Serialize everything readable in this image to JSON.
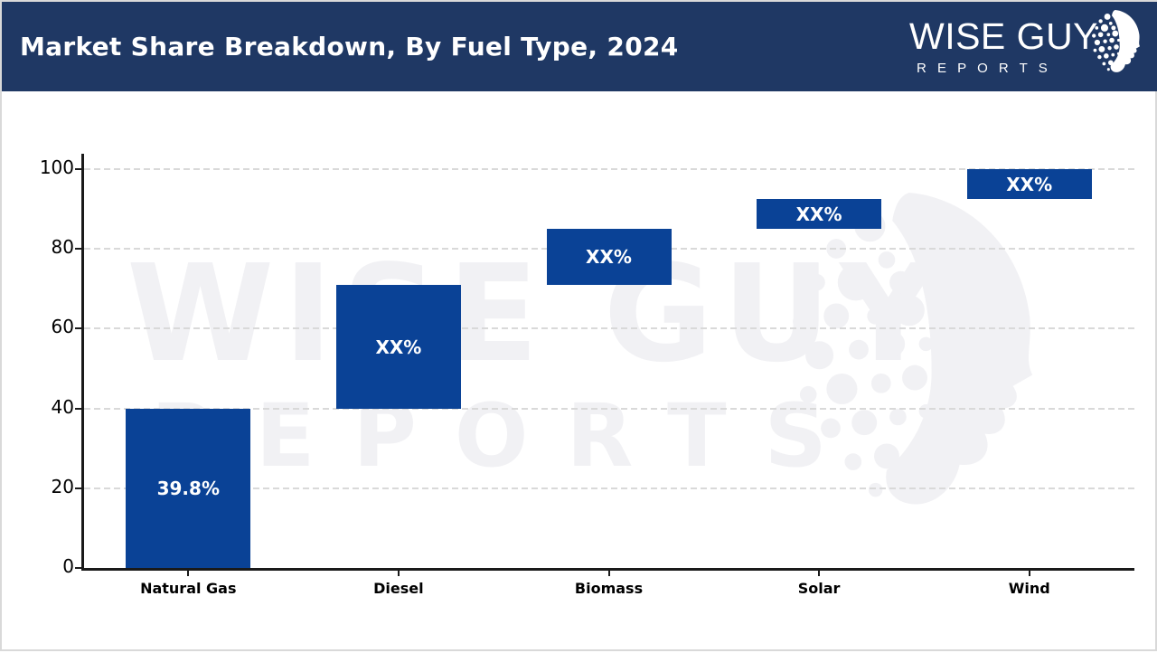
{
  "header": {
    "title": "Market Share Breakdown, By Fuel Type, 2024",
    "bg_color": "#1f3864",
    "logo": {
      "line1": "WISE GUY",
      "line2": "R E P O R T S",
      "color": "#ffffff"
    }
  },
  "watermark": {
    "line1": "WISE GUY",
    "line2": "REPORTS",
    "color": "#f1f1f4"
  },
  "chart_data": {
    "type": "bar",
    "subtype": "stacked-waterfall",
    "title": "Market Share Breakdown, By Fuel Type, 2024",
    "categories": [
      "Natural Gas",
      "Diesel",
      "Biomass",
      "Solar",
      "Wind"
    ],
    "segments": [
      {
        "category": "Natural Gas",
        "start": 0,
        "end": 39.8,
        "value": 39.8,
        "label": "39.8%"
      },
      {
        "category": "Diesel",
        "start": 39.8,
        "end": 71,
        "value": 31.2,
        "label": "XX%"
      },
      {
        "category": "Biomass",
        "start": 71,
        "end": 85,
        "value": 14,
        "label": "XX%"
      },
      {
        "category": "Solar",
        "start": 85,
        "end": 92.5,
        "value": 7.5,
        "label": "XX%"
      },
      {
        "category": "Wind",
        "start": 92.5,
        "end": 100,
        "value": 7.5,
        "label": "XX%"
      }
    ],
    "xlabel": "",
    "ylabel": "",
    "ylim": [
      0,
      100
    ],
    "yticks": [
      "0",
      "20",
      "40",
      "60",
      "80",
      "100"
    ],
    "grid": "horizontal-dashed",
    "legend": "none",
    "colors": {
      "bar": "#0a4296",
      "bar_label": "#ffffff",
      "grid": "#d9d9d9",
      "axis": "#1a1a1a",
      "tick_label": "#000000"
    }
  }
}
